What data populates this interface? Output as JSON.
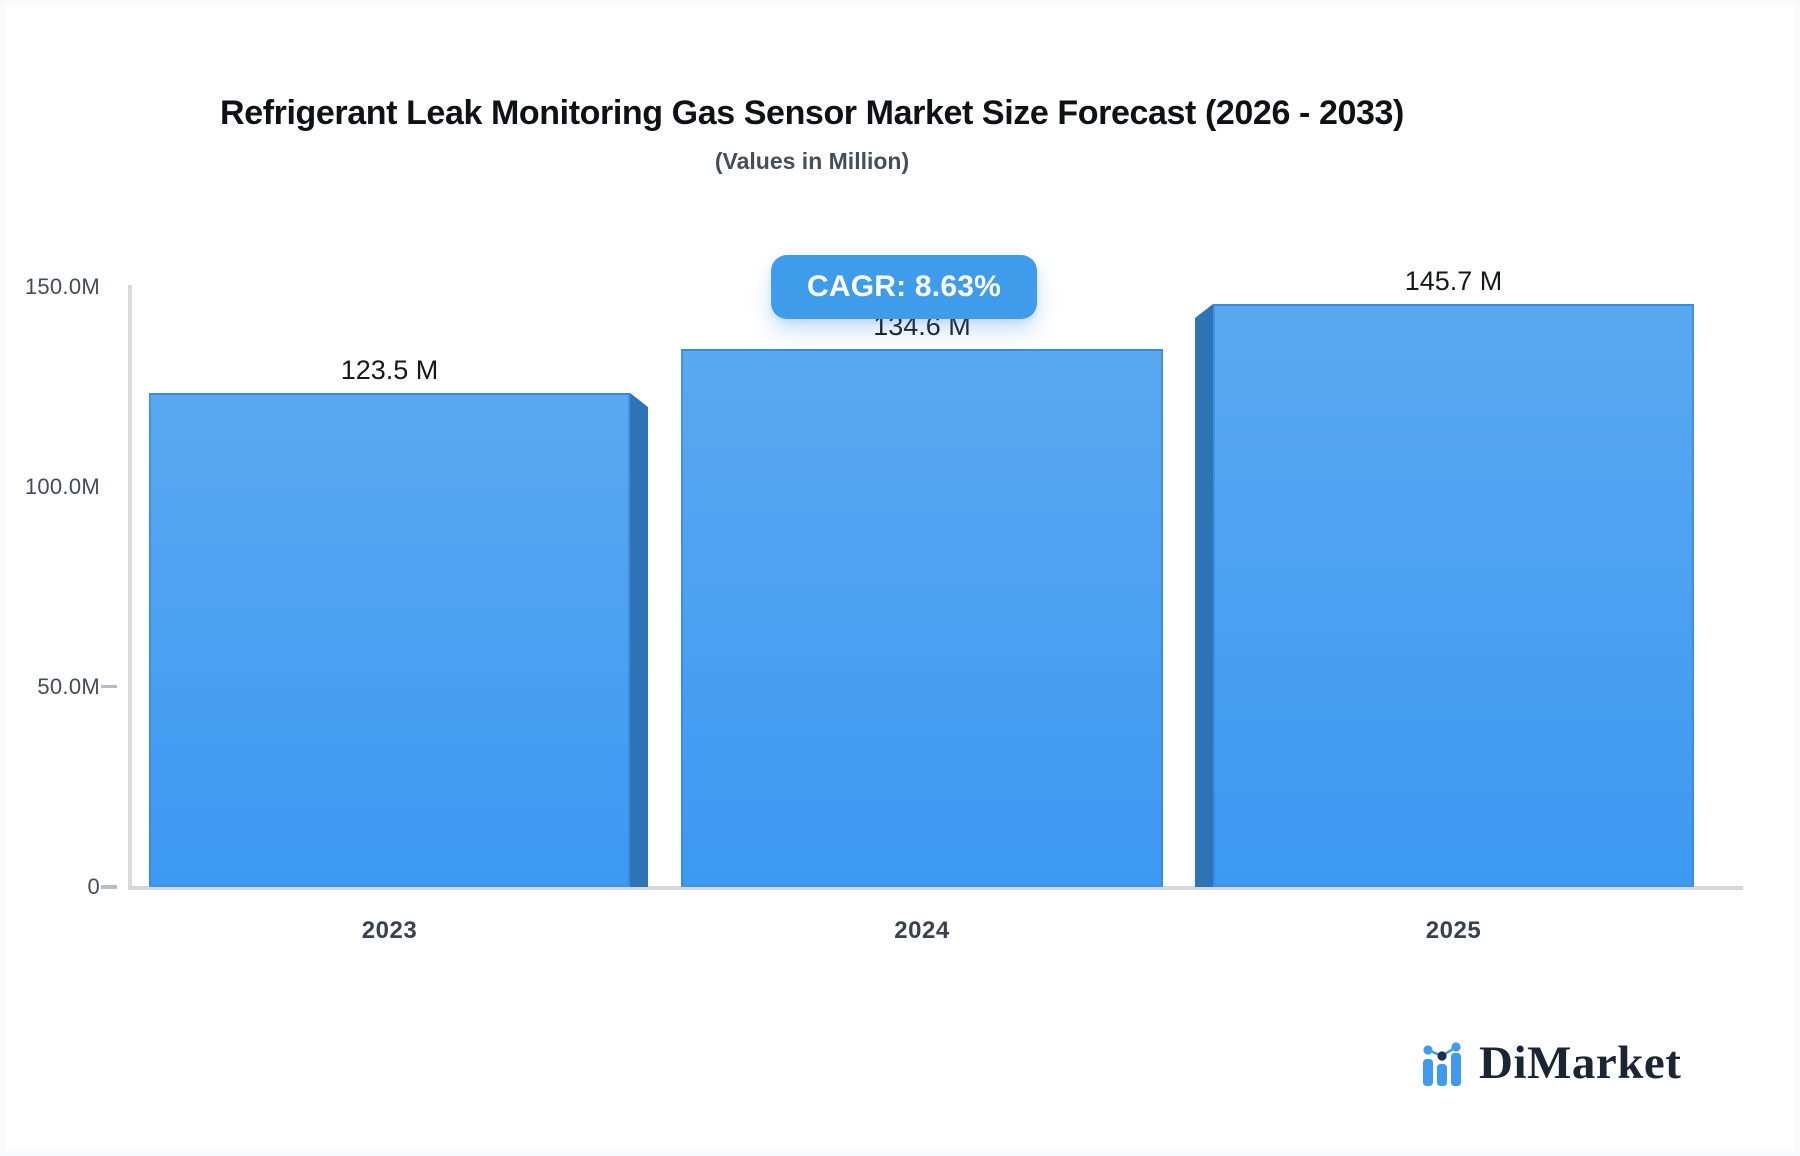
{
  "page": {
    "title": "Refrigerant Leak Monitoring Gas Sensor Market Size Forecast (2026 - 2033)",
    "subtitle": "(Values in Million)",
    "cagr_label": "CAGR: 8.63%",
    "brand": "DiMarket"
  },
  "colors": {
    "bar_top": "#5aa8f0",
    "bar_bottom": "#3d99f2",
    "bar_side": "#2d73b5",
    "badge_bg": "#3f9ceb",
    "axis": "#d8dade",
    "logo_blue": "#4199f0",
    "logo_navy": "#1b2533"
  },
  "chart_data": {
    "type": "bar",
    "title": "Refrigerant Leak Monitoring Gas Sensor Market Size Forecast (2026 - 2033)",
    "subtitle": "(Values in Million)",
    "annotation": "CAGR: 8.63%",
    "categories": [
      "2023",
      "2024",
      "2025"
    ],
    "values": [
      123.5,
      134.6,
      145.7
    ],
    "value_labels": [
      "123.5 M",
      "134.6 M",
      "145.7 M"
    ],
    "unit": "Million",
    "ylim": [
      0,
      150
    ],
    "ytick_values": [
      150,
      100,
      50,
      0
    ],
    "ytick_labels": [
      "150.0M",
      "100.0M",
      "50.0M",
      "0"
    ],
    "grid": false,
    "legend": false,
    "bar_style": "3d-gradient-blue"
  }
}
